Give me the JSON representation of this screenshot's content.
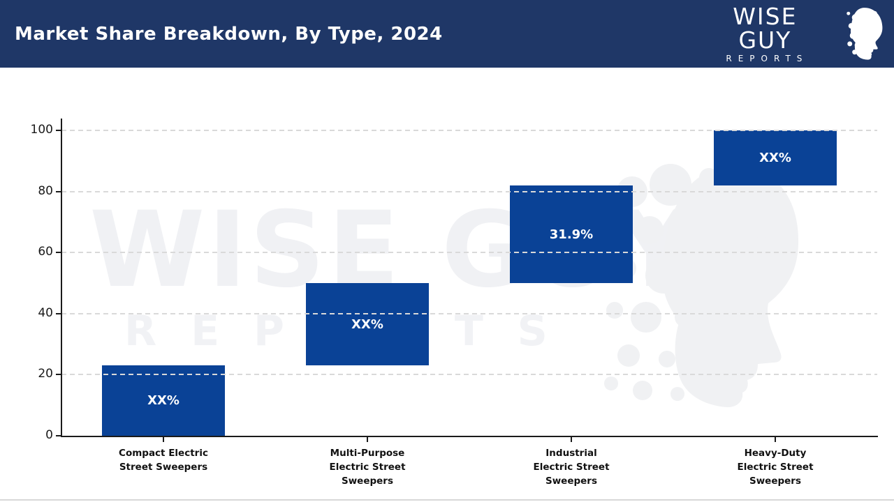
{
  "header": {
    "title": "Market Share Breakdown, By Type, 2024",
    "logo_line1": "WISE GUY",
    "logo_line2": "REPORTS"
  },
  "watermark": {
    "line1": "WISE GUY",
    "line2": "R E P O R T S"
  },
  "chart_data": {
    "type": "bar",
    "subtype": "waterfall",
    "title": "Market Share Breakdown, By Type, 2024",
    "categories": [
      [
        "Compact Electric",
        "Street Sweepers"
      ],
      [
        "Multi-Purpose",
        "Electric Street",
        "Sweepers"
      ],
      [
        "Industrial",
        "Electric Street",
        "Sweepers"
      ],
      [
        "Heavy-Duty",
        "Electric Street",
        "Sweepers"
      ]
    ],
    "bars": [
      {
        "start": 0,
        "end": 23,
        "label": "XX%"
      },
      {
        "start": 23,
        "end": 50,
        "label": "XX%"
      },
      {
        "start": 50,
        "end": 81.9,
        "label": "31.9%"
      },
      {
        "start": 81.9,
        "end": 100,
        "label": "XX%"
      }
    ],
    "ylim": [
      0,
      100
    ],
    "yticks": [
      0,
      20,
      40,
      60,
      80,
      100
    ],
    "grid": "horizontal-dashed",
    "legend": "none",
    "bar_color": "#0a4296",
    "colors": {
      "header_bg": "#1f3767",
      "axis": "#1a1a1a",
      "gridline": "#d9d9d9",
      "bar_label_text": "#ffffff",
      "watermark": "#f0f1f4"
    }
  }
}
